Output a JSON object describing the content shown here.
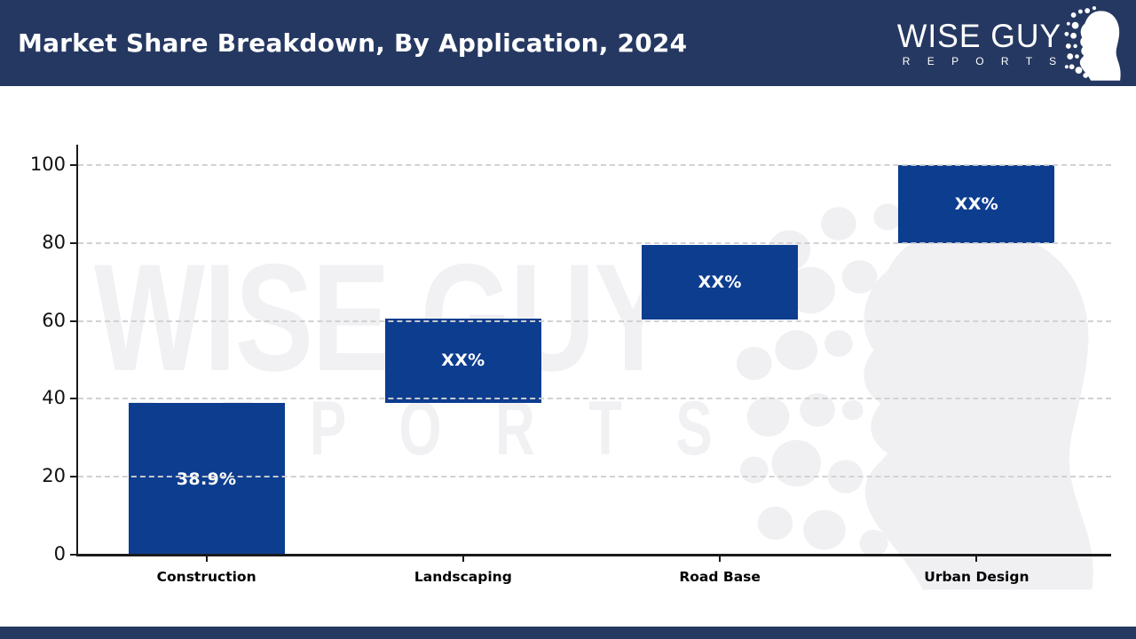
{
  "header": {
    "title": "Market Share Breakdown, By Application, 2024",
    "brand_line1": "WISE GUY",
    "brand_line2": "R E P O R T S"
  },
  "watermark": {
    "line1": "WISE GUY",
    "line2": "R E P O R T S"
  },
  "chart_data": {
    "type": "bar",
    "subtype": "waterfall",
    "title": "Market Share Breakdown, By Application, 2024",
    "categories": [
      "Construction",
      "Landscaping",
      "Road Base",
      "Urban Design"
    ],
    "bars": [
      {
        "category": "Construction",
        "from": 0,
        "to": 38.9,
        "label": "38.9%"
      },
      {
        "category": "Landscaping",
        "from": 38.9,
        "to": 60.7,
        "label": "XX%"
      },
      {
        "category": "Road Base",
        "from": 60.4,
        "to": 79.6,
        "label": "XX%"
      },
      {
        "category": "Urban Design",
        "from": 80.0,
        "to": 100,
        "label": "XX%"
      }
    ],
    "yticks": [
      0,
      20,
      40,
      60,
      80,
      100
    ],
    "ylim": [
      0,
      105
    ],
    "grid": "horizontal dashed, drawn above bars",
    "legend": "none",
    "bar_color": "#0d3d8f",
    "bar_label_color": "#ffffff",
    "axis_color": "#1a1a1a",
    "grid_color": "#d0d0d0",
    "header_color": "#253861",
    "watermark_color": "#f1f1f4"
  }
}
